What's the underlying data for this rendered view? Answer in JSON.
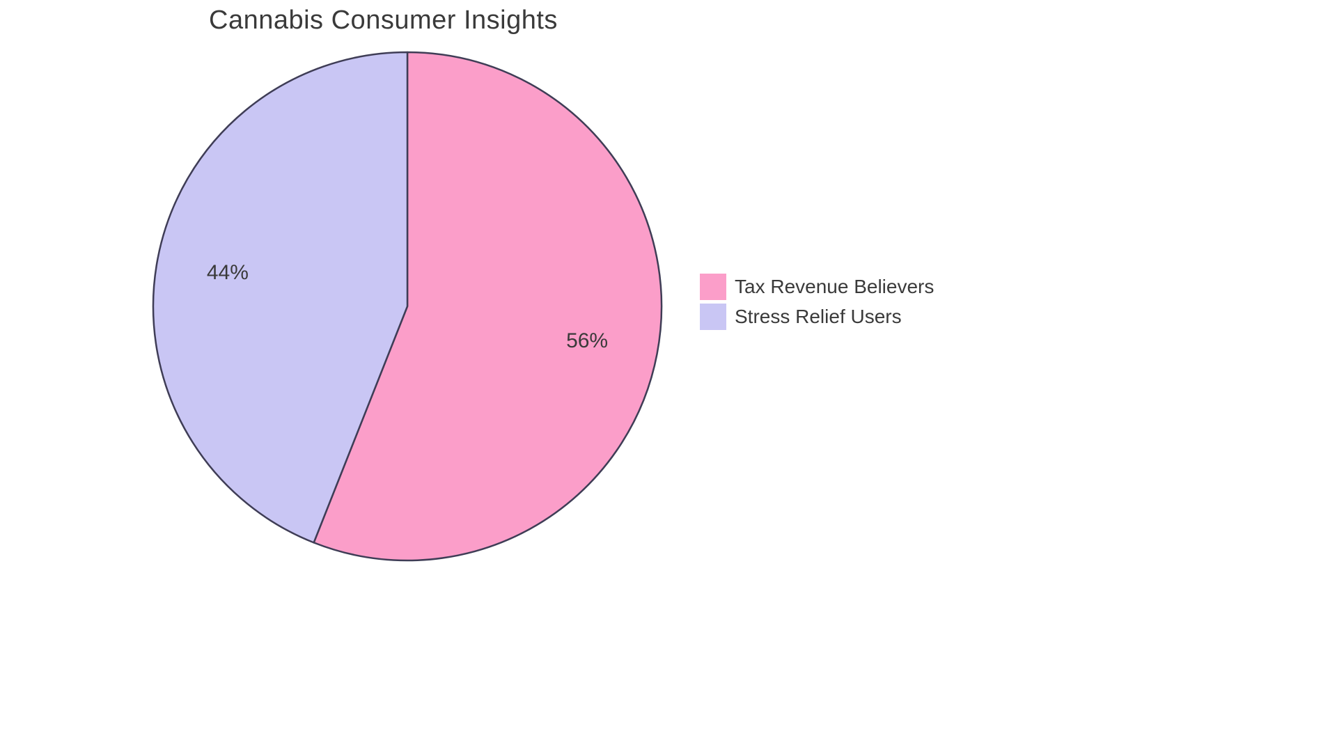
{
  "chart_data": {
    "type": "pie",
    "title": "Cannabis Consumer Insights",
    "slices": [
      {
        "label": "Tax Revenue Believers",
        "value": 56,
        "pct_label": "56%",
        "color": "#FB9EC9"
      },
      {
        "label": "Stress Relief Users",
        "value": 44,
        "pct_label": "44%",
        "color": "#C9C6F4"
      }
    ],
    "start_angle_deg": 0,
    "direction": "clockwise",
    "legend_position": "right",
    "stroke_color": "#3F3D56",
    "label_color": "#3A3A3A",
    "title_color": "#3A3A3A",
    "background": "#FFFFFF"
  }
}
